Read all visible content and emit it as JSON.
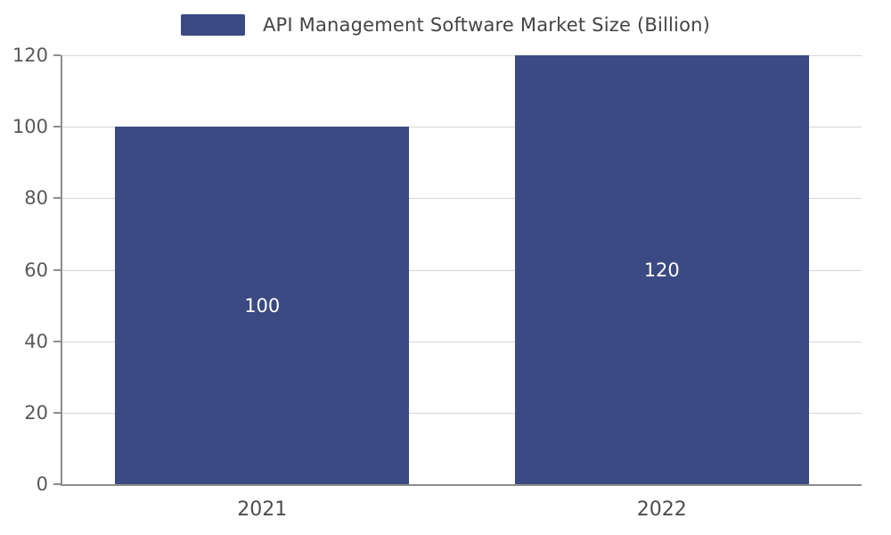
{
  "chart_data": {
    "type": "bar",
    "title": "API Management Software Market Size (Billion)",
    "categories": [
      "2021",
      "2022"
    ],
    "values": [
      100,
      120
    ],
    "xlabel": "",
    "ylabel": "",
    "ylim": [
      0,
      120
    ],
    "y_ticks": [
      0,
      20,
      40,
      60,
      80,
      100,
      120
    ],
    "grid": true,
    "legend_position": "top",
    "bar_width_fraction": 0.735,
    "bar_color": "#3b4a82"
  },
  "colors": {
    "bar": "#3b4a82",
    "grid": "#d7d7d7",
    "axis": "#8c8c8c",
    "y_tick_label": "#595959",
    "x_tick_label": "#4d4d4d",
    "legend_text": "#444444",
    "bar_label": "#ffffff",
    "background": "#ffffff"
  }
}
